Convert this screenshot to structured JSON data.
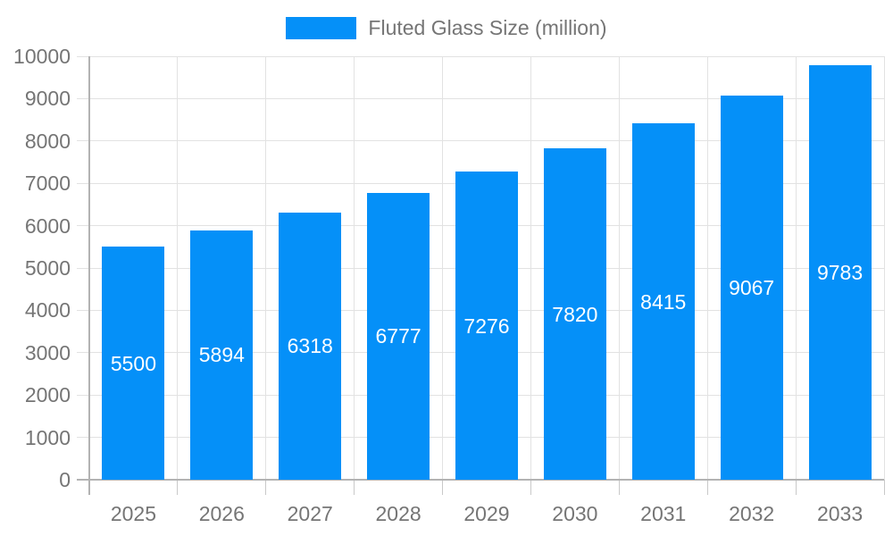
{
  "chart_data": {
    "type": "bar",
    "title": "Fluted Glass Size (million)",
    "xlabel": "",
    "ylabel": "",
    "categories": [
      "2025",
      "2026",
      "2027",
      "2028",
      "2029",
      "2030",
      "2031",
      "2032",
      "2033"
    ],
    "values": [
      5500,
      5894,
      6318,
      6777,
      7276,
      7820,
      8415,
      9067,
      9783
    ],
    "series": [
      {
        "name": "Fluted Glass Size (million)",
        "values": [
          5500,
          5894,
          6318,
          6777,
          7276,
          7820,
          8415,
          9067,
          9783
        ]
      }
    ],
    "ylim": [
      0,
      10000
    ],
    "ytick_step": 1000,
    "yticks": [
      0,
      1000,
      2000,
      3000,
      4000,
      5000,
      6000,
      7000,
      8000,
      9000,
      10000
    ],
    "grid": true,
    "legend_position": "top",
    "bar_labels_inside": true,
    "colors": {
      "bar": "#0590f8",
      "bar_label": "#ffffff",
      "axis_text": "#757575",
      "legend_text": "#757575",
      "grid_line": "#e2e2e2",
      "tick_line": "#c9c9c9",
      "axis_line": "#b3b3b3",
      "background": "#ffffff"
    }
  }
}
